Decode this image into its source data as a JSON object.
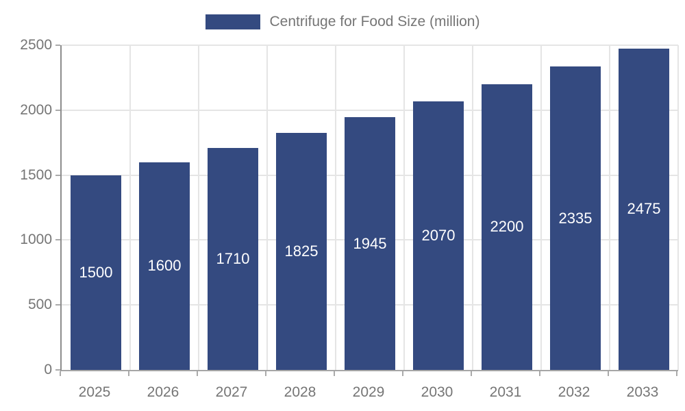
{
  "chart_data": {
    "type": "bar",
    "title": "Centrifuge for Food Size (million)",
    "series_name": "Centrifuge for Food Size (million)",
    "categories": [
      "2025",
      "2026",
      "2027",
      "2028",
      "2029",
      "2030",
      "2031",
      "2032",
      "2033"
    ],
    "values": [
      1500,
      1600,
      1710,
      1825,
      1945,
      2070,
      2200,
      2335,
      2475
    ],
    "xlabel": "",
    "ylabel": "",
    "ylim": [
      0,
      2500
    ],
    "yticks": [
      0,
      500,
      1000,
      1500,
      2000,
      2500
    ],
    "grid": true,
    "legend_position": "top-center",
    "bar_labels_inside": true,
    "colors": {
      "bar": "#344a80",
      "bar_label": "#ffffff",
      "axis_text": "#757575",
      "legend_text": "#757575",
      "gridline": "#e5e5e5",
      "y_spine": "#8c8c8c",
      "axis_line": "#a6a6a6",
      "tick": "#aaaaaa",
      "background": "#ffffff"
    }
  }
}
